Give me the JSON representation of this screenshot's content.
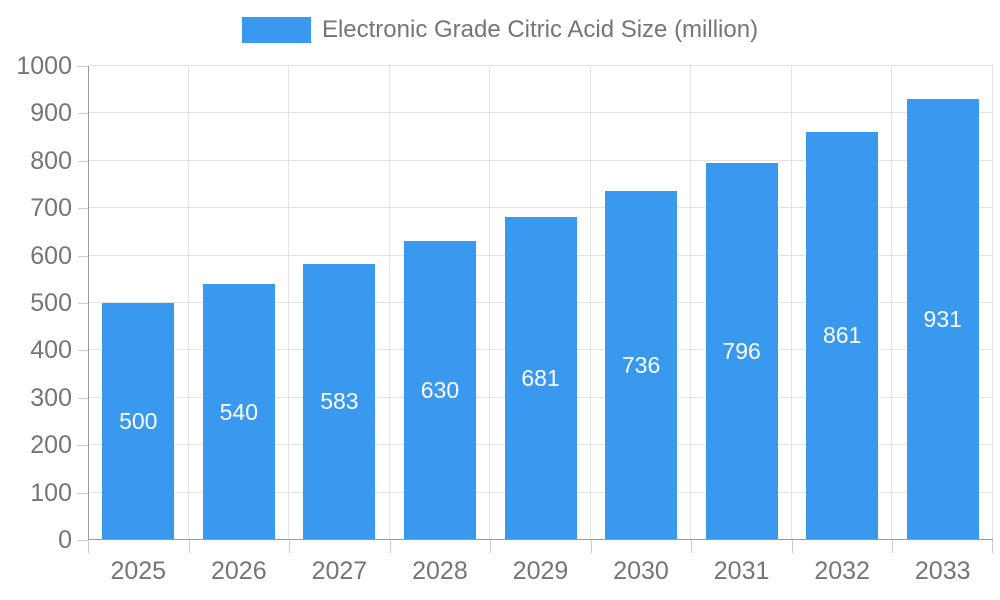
{
  "chart_data": {
    "type": "bar",
    "title": "Electronic Grade Citric Acid Size (million)",
    "legend_entries": [
      "Electronic Grade Citric Acid Size (million)"
    ],
    "legend_position": "top",
    "categories": [
      "2025",
      "2026",
      "2027",
      "2028",
      "2029",
      "2030",
      "2031",
      "2032",
      "2033"
    ],
    "series": [
      {
        "name": "Electronic Grade Citric Acid Size (million)",
        "values": [
          500,
          540,
          583,
          630,
          681,
          736,
          796,
          861,
          931
        ]
      }
    ],
    "value_labels_shown": true,
    "xlabel": "",
    "ylabel": "",
    "ylim": [
      0,
      1000
    ],
    "ytick_step": 100,
    "ytick_labels": [
      "0",
      "100",
      "200",
      "300",
      "400",
      "500",
      "600",
      "700",
      "800",
      "900",
      "1000"
    ],
    "grid": true,
    "colors": {
      "bar": "#3999ee",
      "axis_text": "#757575",
      "value_label": "#ffffff",
      "grid_line": "#e3e3e3",
      "axis_line": "#9a9a9a",
      "tick": "#cccccc",
      "background": "#ffffff"
    }
  }
}
